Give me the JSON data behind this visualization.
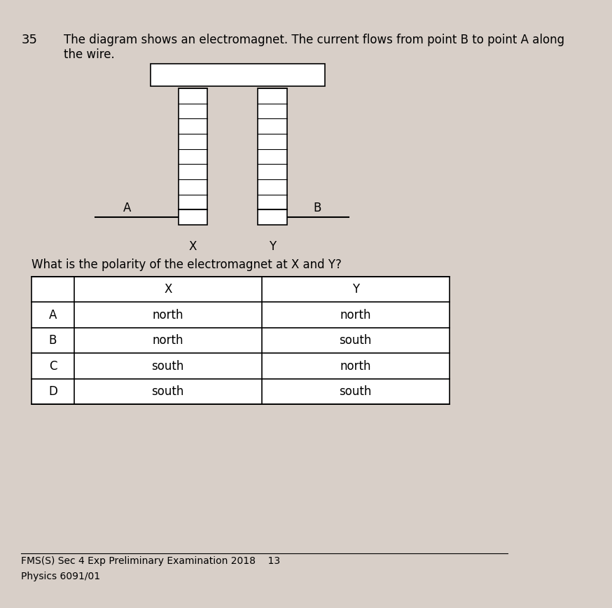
{
  "question_number": "35",
  "question_text": "The diagram shows an electromagnet. The current flows from point B to point A along\nthe wire.",
  "sub_question": "What is the polarity of the electromagnet at X and Y?",
  "bg_color": "#d8cfc8",
  "table_rows": [
    {
      "label": "A",
      "x_val": "north",
      "y_val": "north"
    },
    {
      "label": "B",
      "x_val": "north",
      "y_val": "south"
    },
    {
      "label": "C",
      "x_val": "south",
      "y_val": "north"
    },
    {
      "label": "D",
      "x_val": "south",
      "y_val": "south"
    }
  ],
  "footer_line1": "FMS(S) Sec 4 Exp Preliminary Examination 2018    13",
  "footer_line2": "Physics 6091/01"
}
